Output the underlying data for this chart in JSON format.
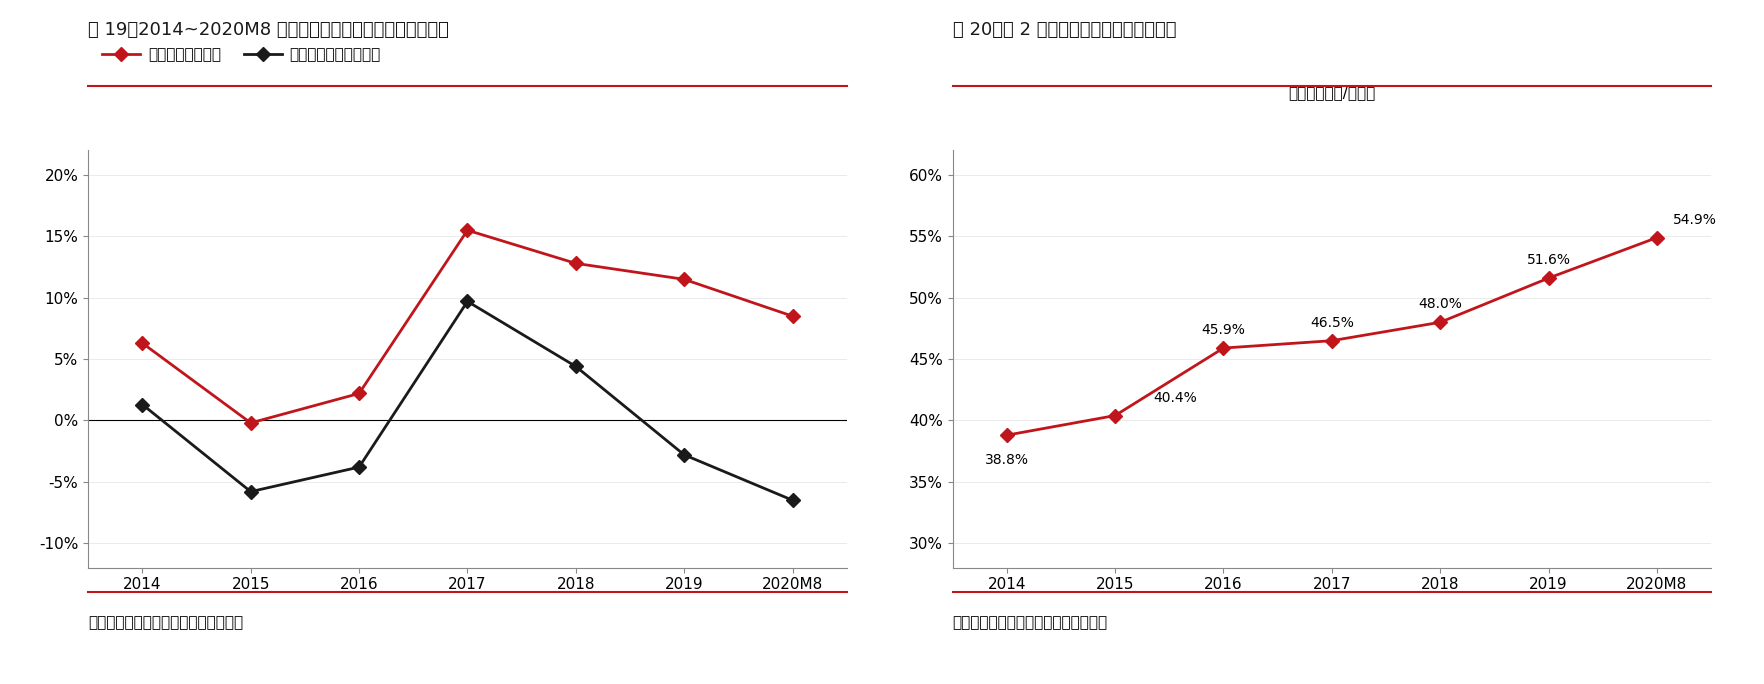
{
  "fig19": {
    "title": "图 19：2014~2020M8 民营及外资企业出口增速差逐步拉大",
    "x_labels": [
      "2014",
      "2015",
      "2016",
      "2017",
      "2018",
      "2019",
      "2020M8"
    ],
    "series1": {
      "label": "民营企业出口同比",
      "color": "#C0161B",
      "values": [
        0.063,
        -0.002,
        0.022,
        0.155,
        0.128,
        0.115,
        0.085
      ]
    },
    "series2": {
      "label": "外商投资企业出口同比",
      "color": "#1A1A1A",
      "values": [
        0.013,
        -0.058,
        -0.038,
        0.097,
        0.044,
        -0.028,
        -0.065
      ]
    },
    "ylim": [
      -0.12,
      0.22
    ],
    "yticks": [
      -0.1,
      -0.05,
      0.0,
      0.05,
      0.1,
      0.15,
      0.2
    ],
    "source": "资料来源：海关总署，中信证券研究部"
  },
  "fig20": {
    "title": "图 20：近 2 年民营企业出口占比加速提升",
    "subtitle": "民营企业出口/总出口",
    "x_labels": [
      "2014",
      "2015",
      "2016",
      "2017",
      "2018",
      "2019",
      "2020M8"
    ],
    "series1": {
      "label": "民营企业出口/总出口",
      "color": "#C0161B",
      "values": [
        0.388,
        0.404,
        0.459,
        0.465,
        0.48,
        0.516,
        0.549
      ]
    },
    "annotations": [
      "38.8%",
      "40.4%",
      "45.9%",
      "46.5%",
      "48.0%",
      "51.6%",
      "54.9%"
    ],
    "annot_offsets_x": [
      0,
      0.35,
      0,
      0,
      0,
      0,
      0.15
    ],
    "annot_offsets_y": [
      -0.026,
      0.009,
      0.009,
      0.009,
      0.009,
      0.009,
      0.009
    ],
    "annot_ha": [
      "center",
      "left",
      "center",
      "center",
      "center",
      "center",
      "left"
    ],
    "ylim": [
      0.28,
      0.62
    ],
    "yticks": [
      0.3,
      0.35,
      0.4,
      0.45,
      0.5,
      0.55,
      0.6
    ],
    "source": "资料来源：海关总署，中信证券研究部"
  },
  "title_fontsize": 13,
  "legend_fontsize": 11,
  "tick_fontsize": 11,
  "source_fontsize": 11,
  "annot_fontsize": 10,
  "subtitle_fontsize": 11,
  "line_width": 2.0,
  "marker_size": 7,
  "background_color": "#FFFFFF",
  "divider_color": "#C0161B",
  "title_color": "#1A1A1A"
}
